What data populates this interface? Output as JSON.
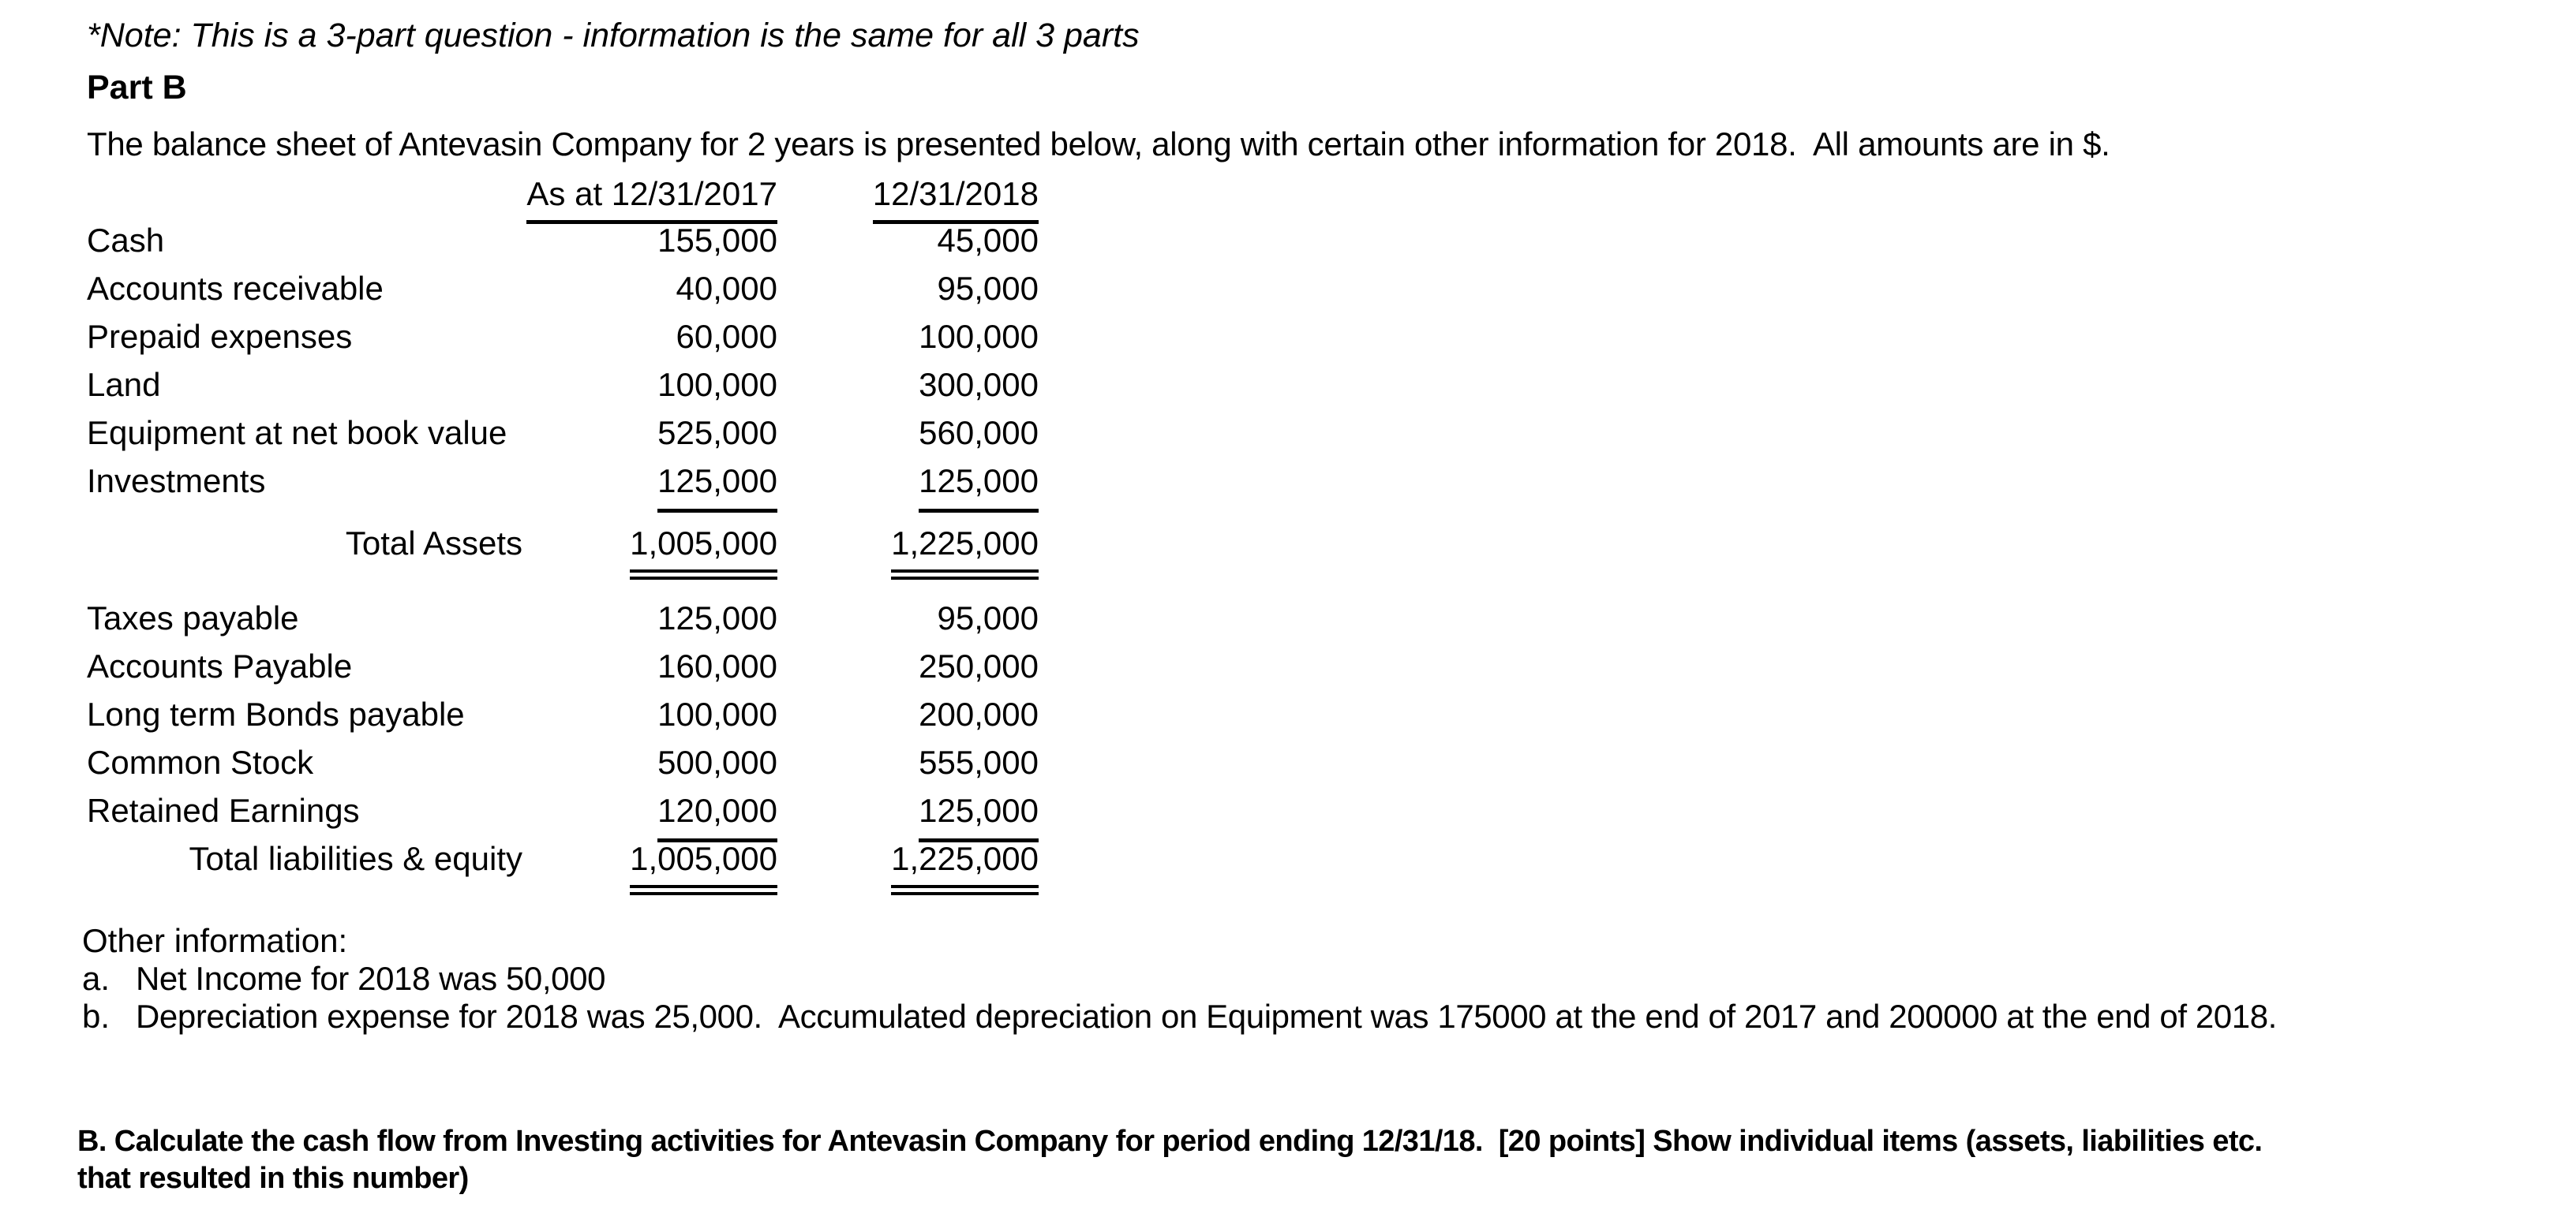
{
  "document": {
    "note": "*Note: This is a 3-part question - information is the same for all 3 parts",
    "part_label": "Part B",
    "intro": "The balance sheet of Antevasin Company for 2 years is presented below, along with certain other information for 2018.  All amounts are in $."
  },
  "balance_sheet": {
    "col_2017_header": "As at 12/31/2017",
    "col_2018_header": "12/31/2018",
    "assets": {
      "rows": [
        {
          "label": "Cash",
          "v2017": "155,000",
          "v2018": "45,000"
        },
        {
          "label": "Accounts receivable",
          "v2017": "40,000",
          "v2018": "95,000"
        },
        {
          "label": "Prepaid expenses",
          "v2017": "60,000",
          "v2018": "100,000"
        },
        {
          "label": "Land",
          "v2017": "100,000",
          "v2018": "300,000"
        },
        {
          "label": "Equipment at net book value",
          "v2017": "525,000",
          "v2018": "560,000"
        },
        {
          "label": "Investments",
          "v2017": "125,000",
          "v2018": "125,000"
        }
      ],
      "total": {
        "label": "Total Assets",
        "v2017": "1,005,000",
        "v2018": "1,225,000"
      }
    },
    "liabilities_equity": {
      "rows": [
        {
          "label": "Taxes payable",
          "v2017": "125,000",
          "v2018": "95,000"
        },
        {
          "label": "Accounts Payable",
          "v2017": "160,000",
          "v2018": "250,000"
        },
        {
          "label": "Long term Bonds payable",
          "v2017": "100,000",
          "v2018": "200,000"
        },
        {
          "label": "Common Stock",
          "v2017": "500,000",
          "v2018": "555,000"
        },
        {
          "label": "Retained Earnings",
          "v2017": "120,000",
          "v2018": "125,000"
        }
      ],
      "total": {
        "label": "Total liabilities & equity",
        "v2017": "1,005,000",
        "v2018": "1,225,000"
      }
    }
  },
  "other_information": {
    "heading": "Other information:",
    "items": [
      {
        "marker": "a.",
        "text": "Net Income for 2018 was 50,000"
      },
      {
        "marker": "b.",
        "text": "Depreciation expense for 2018 was 25,000.  Accumulated depreciation on Equipment was 175000 at the end of 2017 and 200000 at the end of 2018."
      }
    ]
  },
  "question": {
    "line1": "B. Calculate the cash flow from Investing activities for Antevasin Company for period ending 12/31/18.  [20 points] Show individual items (assets, liabilities etc.",
    "line2": "that resulted in this number)"
  }
}
